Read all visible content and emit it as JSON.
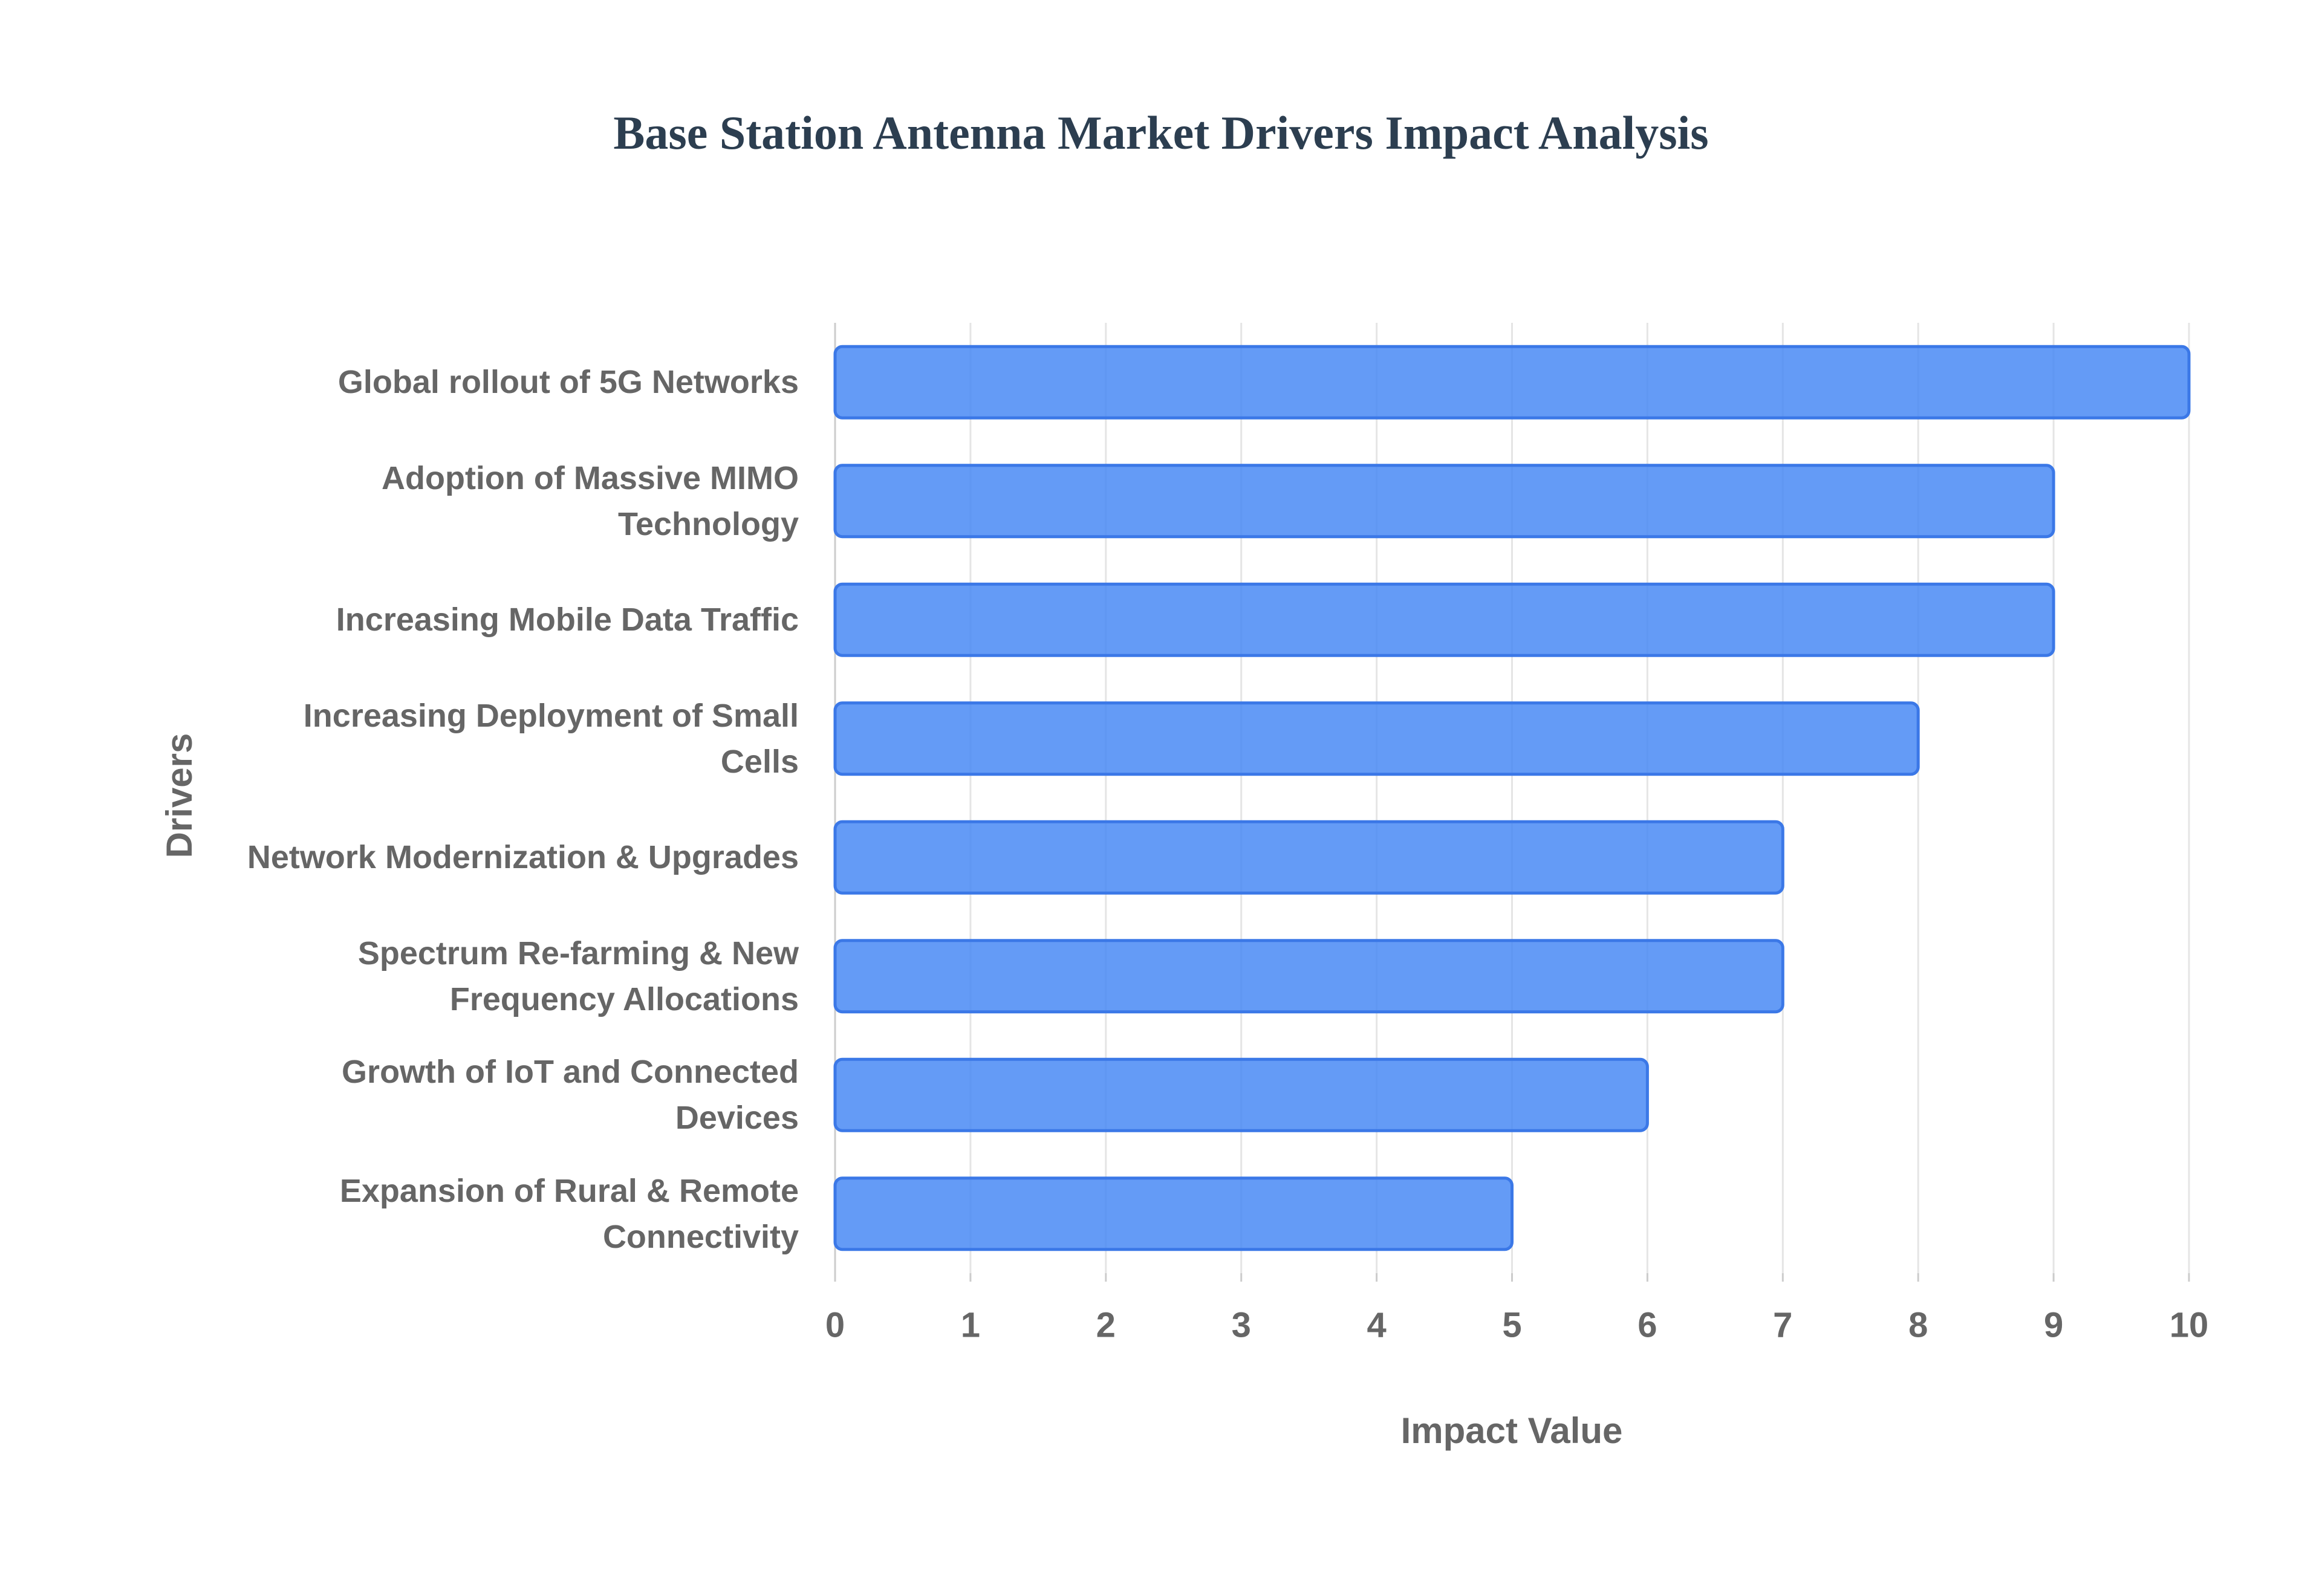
{
  "chart_data": {
    "type": "bar",
    "orientation": "horizontal",
    "title": "Base Station Antenna Market Drivers Impact Analysis",
    "x_label": "Impact Value",
    "y_label": "Drivers",
    "categories": [
      "Global rollout of 5G Networks",
      "Adoption of Massive MIMO Technology",
      "Increasing Mobile Data Traffic",
      "Increasing Deployment of Small Cells",
      "Network Modernization & Upgrades",
      "Spectrum Re-farming & New Frequency Allocations",
      "Growth of IoT and Connected Devices",
      "Expansion of Rural & Remote Connectivity"
    ],
    "values": [
      10,
      9,
      9,
      8,
      7,
      7,
      6,
      5
    ],
    "color": "#4285f4",
    "xlim": [
      0,
      10
    ],
    "xticks": [
      0,
      1,
      2,
      3,
      4,
      5,
      6,
      7,
      8,
      9,
      10
    ],
    "grid": true
  }
}
